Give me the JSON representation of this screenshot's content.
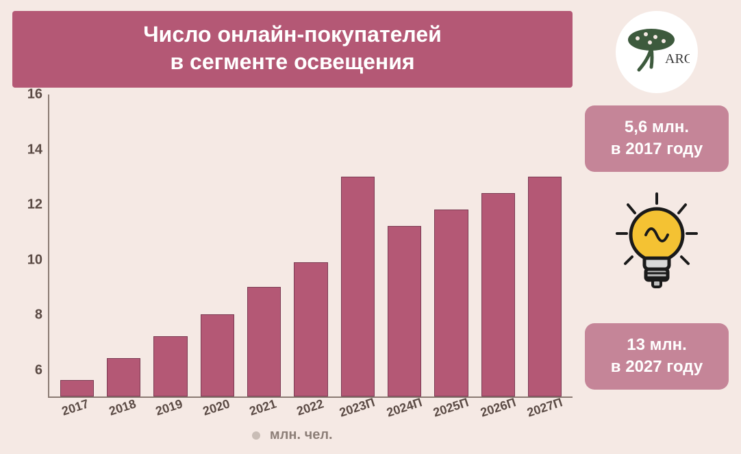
{
  "title": "Число онлайн-покупателей\nв сегменте освещения",
  "logo_text": "ARG",
  "chart": {
    "type": "bar",
    "categories": [
      "2017",
      "2018",
      "2019",
      "2020",
      "2021",
      "2022",
      "2023П",
      "2024П",
      "2025П",
      "2026П",
      "2027П"
    ],
    "values": [
      5.6,
      6.4,
      7.2,
      8.0,
      9.0,
      9.9,
      13.0,
      11.2,
      11.8,
      12.4,
      13.0
    ],
    "bar_color": "#b45875",
    "bar_border_color": "#7a3a52",
    "bar_width": 0.72,
    "y_min": 5,
    "y_max": 16,
    "y_ticks": [
      6,
      8,
      10,
      12,
      14,
      16
    ],
    "axis_color": "#8a7a72",
    "tick_font_size": 20,
    "tick_color": "#5a4a44",
    "xlabel_font_size": 18,
    "xlabel_rotation_deg": -18,
    "background_color": "#f5e9e4"
  },
  "legend": {
    "label": "млн. чел.",
    "dot_color": "#c9bdb6",
    "text_color": "#8c7e77"
  },
  "stats": [
    {
      "value": "5,6 млн.",
      "sub": "в 2017 году"
    },
    {
      "value": "13 млн.",
      "sub": "в 2027 году"
    }
  ],
  "colors": {
    "page_bg": "#f5e9e4",
    "banner_bg": "#b45875",
    "banner_text": "#ffffff",
    "card_bg": "#c58598",
    "card_text": "#ffffff",
    "bulb_yellow": "#f4c233",
    "bulb_outline": "#1a1a1a"
  },
  "title_fontsize": 32
}
